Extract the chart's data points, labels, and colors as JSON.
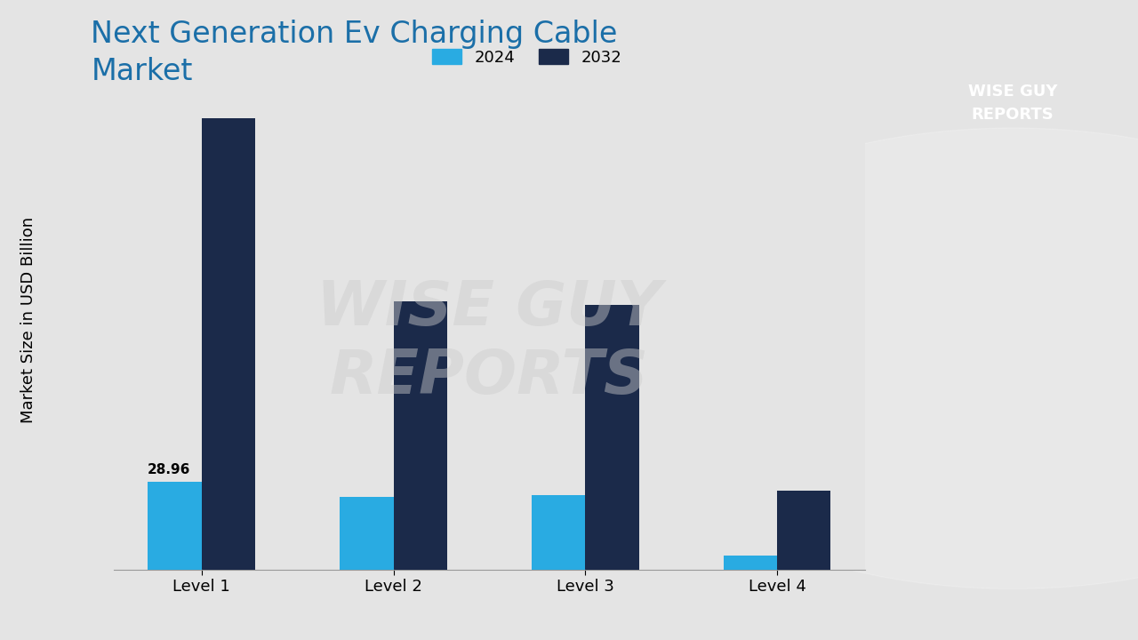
{
  "title": "Next Generation Ev Charging Cable\nMarket",
  "ylabel": "Market Size in USD Billion",
  "categories": [
    "Level 1",
    "Level 2",
    "Level 3",
    "Level 4"
  ],
  "values_2024": [
    28.96,
    24.0,
    24.5,
    4.5
  ],
  "values_2032": [
    148.0,
    88.0,
    87.0,
    26.0
  ],
  "color_2024": "#29ABE2",
  "color_2032": "#1B2A4A",
  "background_color": "#E4E4E4",
  "title_color": "#1B6FA8",
  "title_fontsize": 24,
  "ylabel_fontsize": 13,
  "legend_labels": [
    "2024",
    "2032"
  ],
  "bar_width": 0.28,
  "annotation_label": "28.96",
  "right_panel_color": "#1C2B4B"
}
